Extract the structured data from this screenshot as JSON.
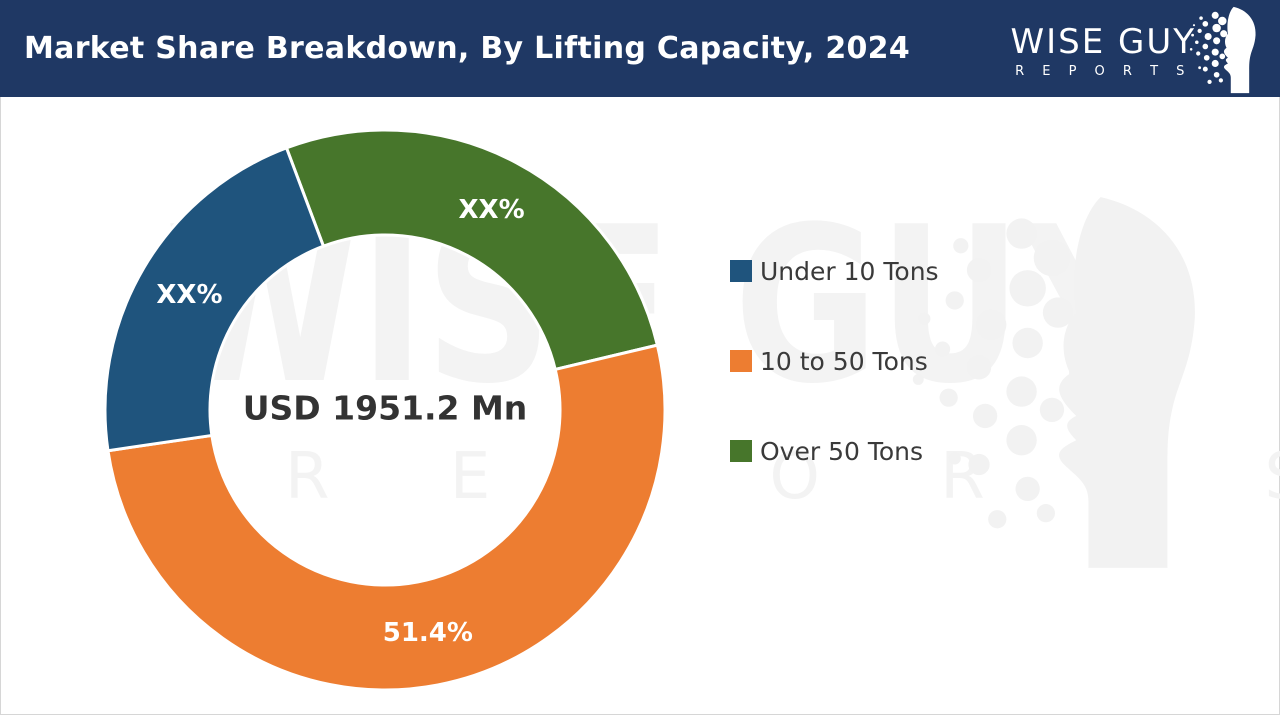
{
  "header": {
    "title": "Market Share Breakdown, By Lifting Capacity, 2024",
    "bg_color": "#1F3864",
    "logo": {
      "line1": "WISE GUY",
      "line2": "R E P O R T S"
    }
  },
  "watermark": {
    "line1": "WISE GUY",
    "line2": "R E P O R T S"
  },
  "chart_data": {
    "type": "pie",
    "donut": true,
    "title": "Market Share Breakdown, By Lifting Capacity, 2024",
    "center_label": "USD 1951.2 Mn",
    "start_angle_deg_from_top": -20.6,
    "segments": [
      {
        "name": "Over 50 Tons",
        "value_pct": 27.0,
        "label": "XX%",
        "masked": true,
        "color": "#47762B"
      },
      {
        "name": "10 to 50 Tons",
        "value_pct": 51.4,
        "label": "51.4%",
        "masked": false,
        "color": "#ED7D31"
      },
      {
        "name": "Under 10 Tons",
        "value_pct": 21.6,
        "label": "XX%",
        "masked": true,
        "color": "#1F547D"
      }
    ],
    "legend": [
      {
        "label": "Under 10 Tons",
        "color": "#1F547D"
      },
      {
        "label": "10 to 50 Tons",
        "color": "#ED7D31"
      },
      {
        "label": "Over 50 Tons",
        "color": "#47762B"
      }
    ],
    "legend_position": "right",
    "label_color": "#ffffff",
    "center_label_color": "#333333"
  }
}
